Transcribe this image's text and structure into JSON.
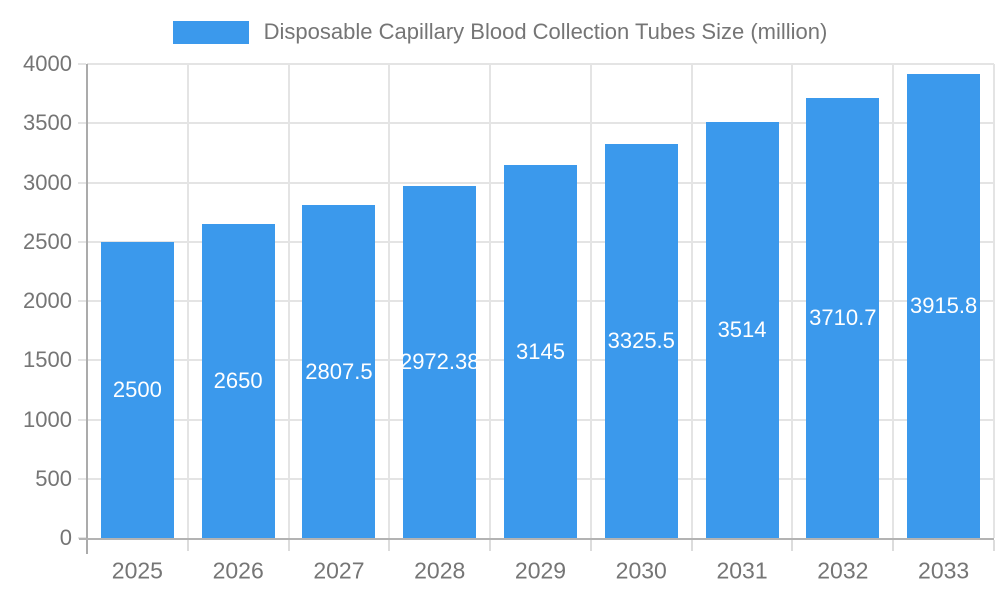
{
  "legend": {
    "label": "Disposable Capillary Blood Collection Tubes Size (million)"
  },
  "colors": {
    "bar": "#3b99ec",
    "grid": "#e4e4e4",
    "axis": "#ababab",
    "text": "#757575",
    "bar_label_text": "#ffffff",
    "background": "#ffffff"
  },
  "chart_data": {
    "type": "bar",
    "title": "Disposable Capillary Blood Collection Tubes Size (million)",
    "categories": [
      "2025",
      "2026",
      "2027",
      "2028",
      "2029",
      "2030",
      "2031",
      "2032",
      "2033"
    ],
    "values": [
      2500,
      2650,
      2807.5,
      2972.38,
      3145,
      3325.5,
      3514,
      3710.7,
      3915.8
    ],
    "xlabel": "",
    "ylabel": "",
    "ylim": [
      0,
      4000
    ],
    "ytick_step": 500,
    "ytick_labels": [
      "0",
      "500",
      "1000",
      "1500",
      "2000",
      "2500",
      "3000",
      "3500",
      "4000"
    ],
    "grid": true,
    "legend_position": "top",
    "bar_label_position": "inside-center"
  }
}
